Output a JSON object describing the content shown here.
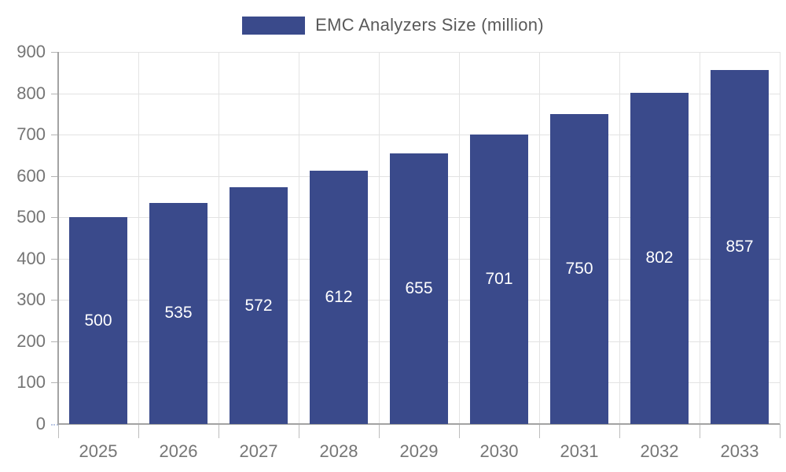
{
  "chart_data": {
    "type": "bar",
    "title": "",
    "legend": "EMC Analyzers Size (million)",
    "legend_position": "top-center",
    "categories": [
      "2025",
      "2026",
      "2027",
      "2028",
      "2029",
      "2030",
      "2031",
      "2032",
      "2033"
    ],
    "values": [
      500,
      535,
      572,
      612,
      655,
      701,
      750,
      802,
      857
    ],
    "yticks": [
      0,
      100,
      200,
      300,
      400,
      500,
      600,
      700,
      800,
      900
    ],
    "ylim": [
      0,
      900
    ],
    "xlabel": "",
    "ylabel": "",
    "grid": true,
    "bar_color": "#3a4a8b",
    "value_label_color": "#ffffff"
  }
}
